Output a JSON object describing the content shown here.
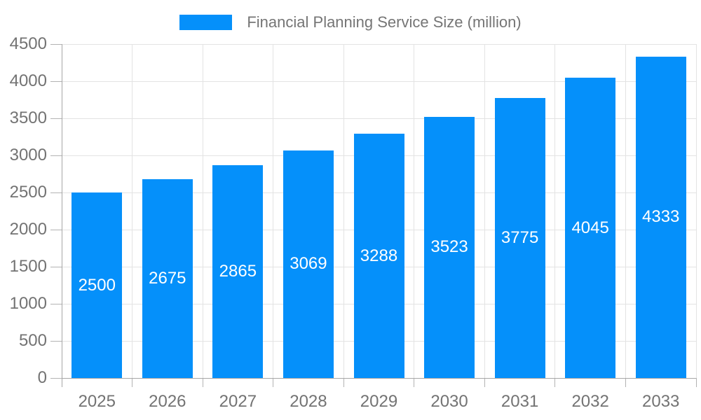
{
  "legend": {
    "label": "Financial Planning Service Size (million)"
  },
  "colors": {
    "bar": "#0590fa",
    "legend_text": "#757575",
    "axis_text": "#737373",
    "grid": "#e3e3e3",
    "axis_line": "#a6a6a6",
    "tick": "#b3b3b3",
    "bar_label": "#ffffff",
    "background": "#ffffff"
  },
  "chart_data": {
    "type": "bar",
    "title": "Financial Planning Service Size (million)",
    "series_name": "Financial Planning Service Size (million)",
    "categories": [
      "2025",
      "2026",
      "2027",
      "2028",
      "2029",
      "2030",
      "2031",
      "2032",
      "2033"
    ],
    "values": [
      2500,
      2675,
      2865,
      3069,
      3288,
      3523,
      3775,
      4045,
      4333
    ],
    "xlabel": "",
    "ylabel": "",
    "ylim": [
      0,
      4500
    ],
    "yticks": [
      0,
      500,
      1000,
      1500,
      2000,
      2500,
      3000,
      3500,
      4000,
      4500
    ],
    "grid": true,
    "legend_position": "top",
    "value_labels": "inside-center"
  }
}
